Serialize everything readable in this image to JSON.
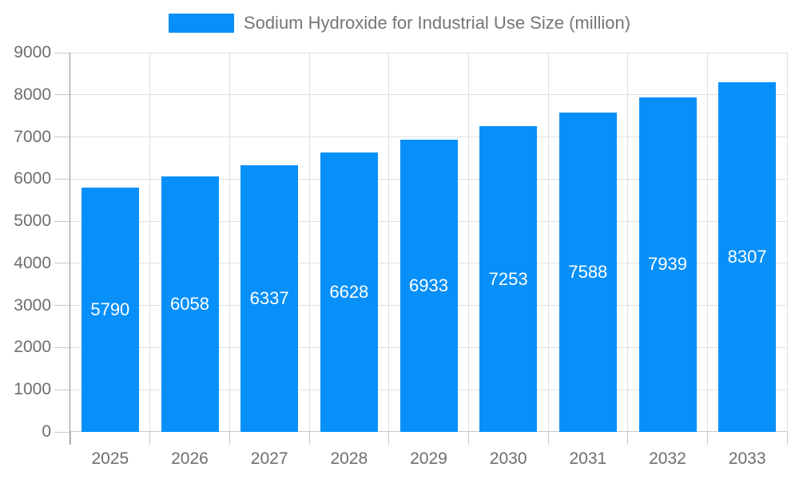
{
  "chart_data": {
    "type": "bar",
    "title": "Sodium Hydroxide for Industrial Use Size (million)",
    "series_name": "Sodium Hydroxide for Industrial Use Size (million)",
    "categories": [
      "2025",
      "2026",
      "2027",
      "2028",
      "2029",
      "2030",
      "2031",
      "2032",
      "2033"
    ],
    "values": [
      5790,
      6058,
      6337,
      6628,
      6933,
      7253,
      7588,
      7939,
      8307
    ],
    "xlabel": "",
    "ylabel": "",
    "ylim": [
      0,
      9000
    ],
    "ytick_step": 1000,
    "ytick_labels": [
      "0",
      "1000",
      "2000",
      "3000",
      "4000",
      "5000",
      "6000",
      "7000",
      "8000",
      "9000"
    ],
    "grid": true,
    "legend_position": "top-center",
    "bar_color": "#0890fa",
    "bar_value_label_color": "#ffffff",
    "title_color": "#757575",
    "axis_label_color": "#6e6e6e",
    "grid_color": "#e0e0e0"
  }
}
